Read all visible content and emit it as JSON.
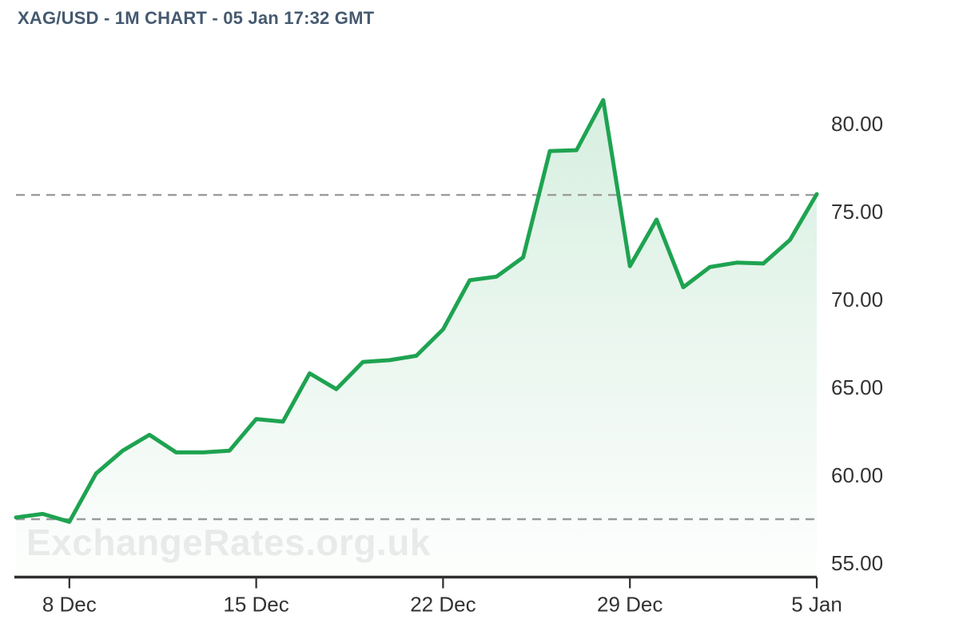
{
  "header": {
    "title": "XAG/USD - 1M CHART - 05 Jan 17:32 GMT"
  },
  "watermark": {
    "text": "ExchangeRates.org.uk"
  },
  "chart_data": {
    "type": "area",
    "pair": "XAG/USD",
    "period": "1M CHART",
    "timestamp": "05 Jan 17:32 GMT",
    "title": "XAG/USD - 1M CHART - 05 Jan 17:32 GMT",
    "x": [
      "6 Dec",
      "7 Dec",
      "8 Dec",
      "9 Dec",
      "10 Dec",
      "11 Dec",
      "12 Dec",
      "13 Dec",
      "14 Dec",
      "15 Dec",
      "16 Dec",
      "17 Dec",
      "18 Dec",
      "19 Dec",
      "20 Dec",
      "21 Dec",
      "22 Dec",
      "23 Dec",
      "24 Dec",
      "25 Dec",
      "26 Dec",
      "27 Dec",
      "28 Dec",
      "29 Dec",
      "30 Dec",
      "31 Dec",
      "1 Jan",
      "2 Jan",
      "3 Jan",
      "4 Jan",
      "5 Jan"
    ],
    "values": [
      57.6,
      57.8,
      57.35,
      60.1,
      61.4,
      62.3,
      61.3,
      61.3,
      61.4,
      63.2,
      63.05,
      65.8,
      64.9,
      66.45,
      66.55,
      66.8,
      68.3,
      71.1,
      71.3,
      72.4,
      78.45,
      78.5,
      81.35,
      71.9,
      74.55,
      70.7,
      71.85,
      72.1,
      72.05,
      73.4,
      76.0
    ],
    "x_ticks": [
      {
        "label": "8 Dec"
      },
      {
        "label": "15 Dec"
      },
      {
        "label": "22 Dec"
      },
      {
        "label": "29 Dec"
      },
      {
        "label": "5 Jan"
      }
    ],
    "y_ticks": [
      {
        "value": 80,
        "label": "80.00"
      },
      {
        "value": 75,
        "label": "75.00"
      },
      {
        "value": 70,
        "label": "70.00"
      },
      {
        "value": 65,
        "label": "65.00"
      },
      {
        "value": 60,
        "label": "60.00"
      },
      {
        "value": 55,
        "label": "55.00"
      }
    ],
    "reference_lines": [
      {
        "name": "high",
        "value": 75.95
      },
      {
        "name": "low",
        "value": 57.5
      }
    ],
    "ylim": [
      54.2,
      83.0
    ],
    "grid": "off",
    "legend": "none",
    "ylabel": "",
    "xlabel": "",
    "colors": {
      "line": "#1ea351",
      "axis": "#2e2e2e",
      "tick_label": "#333333",
      "reference": "#9b9b9b",
      "title": "#455a70",
      "watermark": "#ececec",
      "background": "#ffffff"
    }
  }
}
